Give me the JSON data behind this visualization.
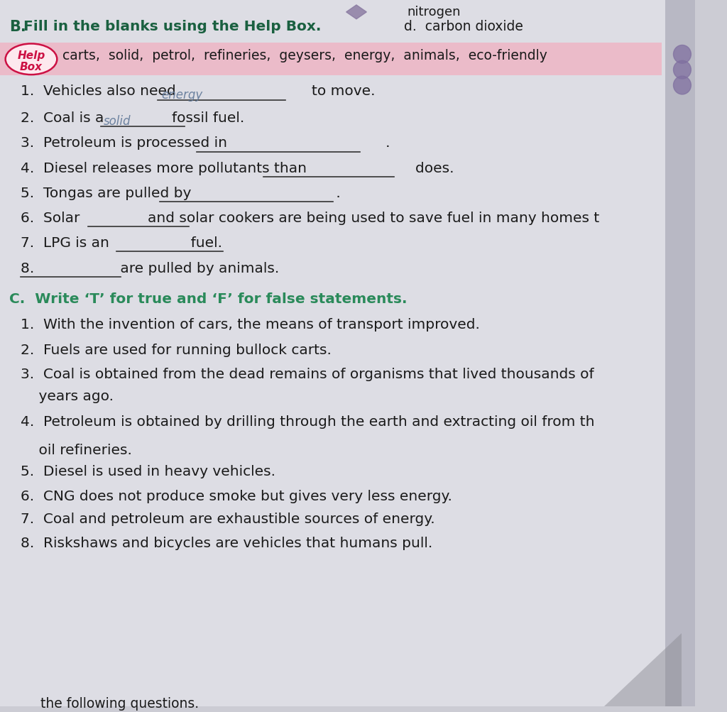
{
  "bg_color": "#ccccd4",
  "page_bg": "#e0dfe6",
  "title_b": "B.",
  "title_text": "Fill in the blanks using the Help Box.",
  "title_color": "#1a6040",
  "carbon_dioxide_label": "d.  carbon dioxide",
  "nitrogen_label": "nitrogen",
  "help_box_words": "carts,  solid,  petrol,  refineries,  geysers,  energy,  animals,  eco-friendly",
  "help_box_bg": "#f0b0c0",
  "section_b_items": [
    "1.  Vehicles also need                              to move.",
    "2.  Coal is a               fossil fuel.",
    "3.  Petroleum is processed in                                   .",
    "4.  Diesel releases more pollutants than                        does.",
    "5.  Tongas are pulled by                                .",
    "6.  Solar               and solar cookers are being used to save fuel in many homes t",
    "7.  LPG is an                  fuel.",
    "8.                   are pulled by animals."
  ],
  "written_answer_1": "energy",
  "written_answer_2": "solid",
  "section_c_title": "C.  Write ‘T’ for true and ‘F’ for false statements.",
  "section_c_color": "#2a8a5a",
  "section_c_items": [
    "1.  With the invention of cars, the means of transport improved.",
    "2.  Fuels are used for running bullock carts.",
    "3.  Coal is obtained from the dead remains of organisms that lived thousands of",
    "    years ago.",
    "4.  Petroleum is obtained by drilling through the earth and extracting oil from th",
    "    oil refineries.",
    "5.  Diesel is used in heavy vehicles.",
    "6.  CNG does not produce smoke but gives very less energy.",
    "7.  Coal and petroleum are exhaustible sources of energy.",
    "8.  Riskshaws and bicycles are vehicles that humans pull."
  ],
  "bottom_text": "the following questions.",
  "text_color": "#1a1a1a",
  "main_font_size": 14.5,
  "item_font_size": 14.5
}
